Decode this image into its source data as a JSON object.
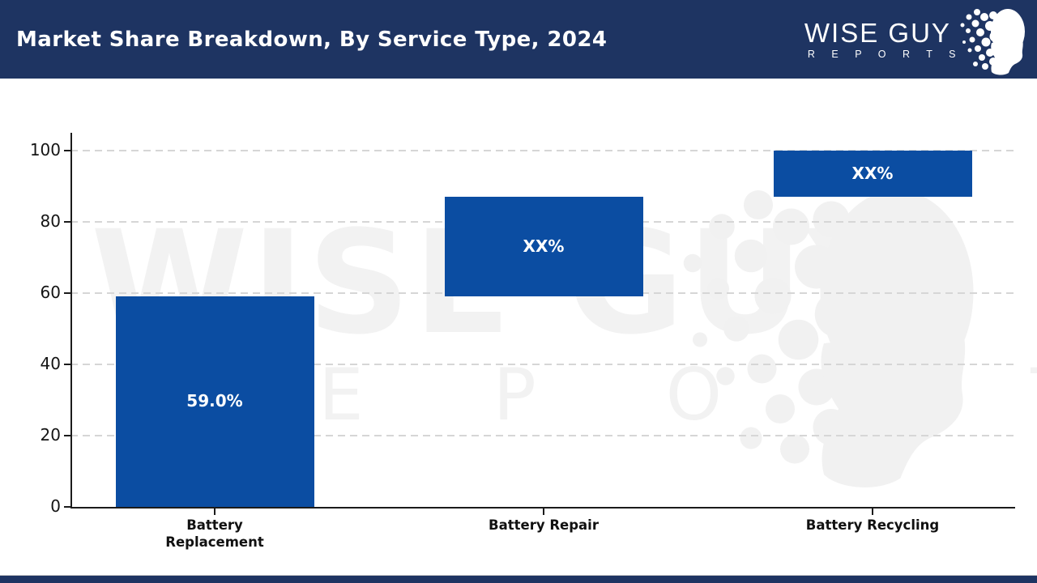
{
  "header": {
    "title": "Market Share Breakdown, By Service Type, 2024",
    "logo": {
      "wordmark": "WISE GUY",
      "subtext": "R E P O R T S",
      "icon": "face-profile-dots-icon"
    }
  },
  "watermark": {
    "wordmark": "WISE GUY",
    "subtext": "R E P O R T S",
    "icon": "face-profile-dots-icon"
  },
  "chart_data": {
    "type": "bar",
    "variant": "stepped-waterfall",
    "title": "Market Share Breakdown, By Service Type, 2024",
    "categories": [
      "Battery\nReplacement",
      "Battery Repair",
      "Battery Recycling"
    ],
    "segments": [
      {
        "category": "Battery Replacement",
        "start": 0,
        "end": 59,
        "label": "59.0%",
        "value_pct": 59.0
      },
      {
        "category": "Battery Repair",
        "start": 59,
        "end": 87,
        "label": "XX%"
      },
      {
        "category": "Battery Recycling",
        "start": 87,
        "end": 100,
        "label": "XX%"
      }
    ],
    "xlabel": "",
    "ylabel": "",
    "yticks": [
      0,
      20,
      40,
      60,
      80,
      100
    ],
    "ylim": [
      0,
      105
    ],
    "grid": "horizontal-dashed",
    "legend": "none",
    "bar_color": "#0b4da2",
    "bar_label_color": "#ffffff"
  },
  "colors": {
    "header_background": "#1e3462",
    "footer_background": "#1e3462",
    "title_text": "#ffffff",
    "bar": "#0b4da2",
    "gridline": "#d6d6d6",
    "axis": "#1b1b1b",
    "tick_text": "#141414",
    "watermark": "#f2f2f2"
  }
}
